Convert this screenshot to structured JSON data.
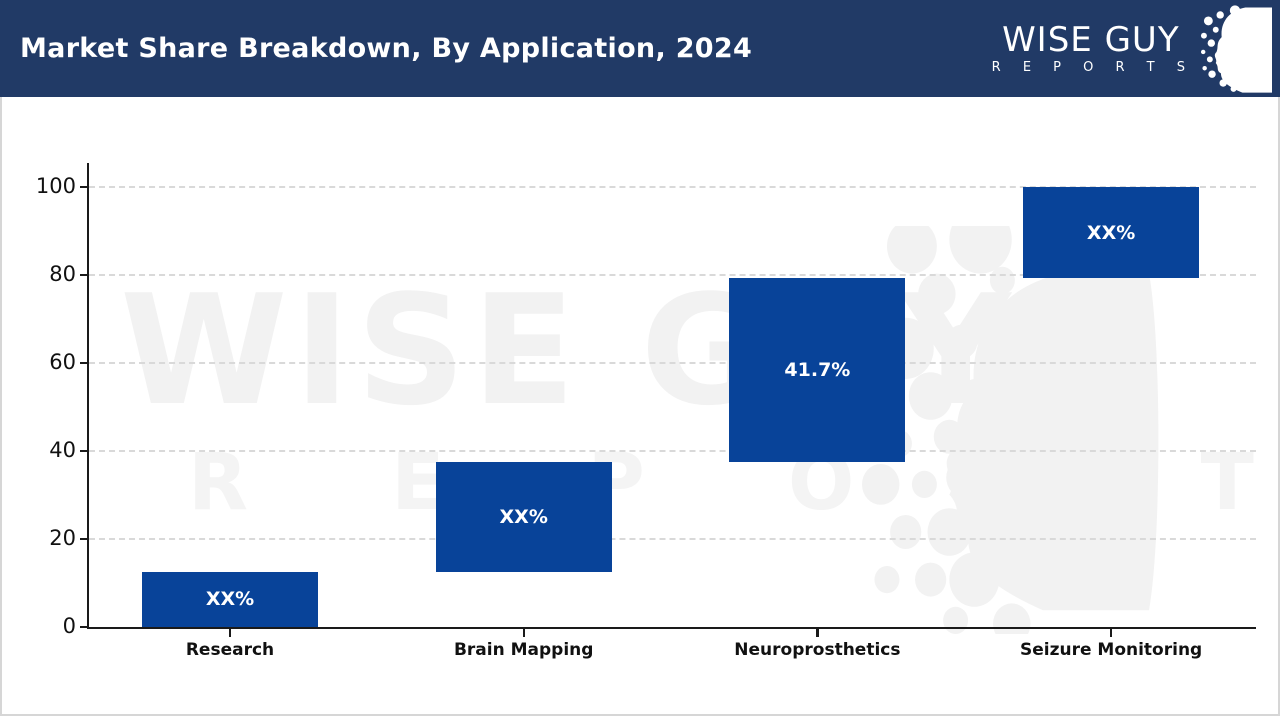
{
  "header": {
    "title": "Market Share Breakdown, By Application, 2024",
    "logo": {
      "line1": "WISE GUY",
      "line2": "R E P O R T S"
    }
  },
  "watermark": {
    "line1": "WISE GUY",
    "line2": "R E P O R T S"
  },
  "colors": {
    "header_bg": "#213a66",
    "bar_blue": "#084399",
    "bar_label": "#ffffff",
    "grid": "#d9d9d9",
    "axis_text": "#111111",
    "watermark_gray": "#f2f2f2",
    "frame_border": "#d6d6d6"
  },
  "chart_data": {
    "type": "bar",
    "subtype": "waterfall",
    "title": "Market Share Breakdown, By Application, 2024",
    "categories": [
      "Research",
      "Brain Mapping",
      "Neuroprosthetics",
      "Seizure Monitoring"
    ],
    "segments": [
      {
        "category": "Research",
        "start": 0,
        "end": 12.5,
        "value": 12.5,
        "label": "XX%"
      },
      {
        "category": "Brain Mapping",
        "start": 12.5,
        "end": 37.5,
        "value": 25.0,
        "label": "XX%"
      },
      {
        "category": "Neuroprosthetics",
        "start": 37.5,
        "end": 79.2,
        "value": 41.7,
        "label": "41.7%"
      },
      {
        "category": "Seizure Monitoring",
        "start": 79.2,
        "end": 100,
        "value": 20.8,
        "label": "XX%"
      }
    ],
    "ylim": [
      0,
      100
    ],
    "yticks": [
      0,
      20,
      40,
      60,
      80,
      100
    ],
    "xlabel": "",
    "ylabel": "",
    "grid": "horizontal-dashed",
    "legend": "none",
    "bar_color": "#084399",
    "label_color": "#ffffff"
  }
}
